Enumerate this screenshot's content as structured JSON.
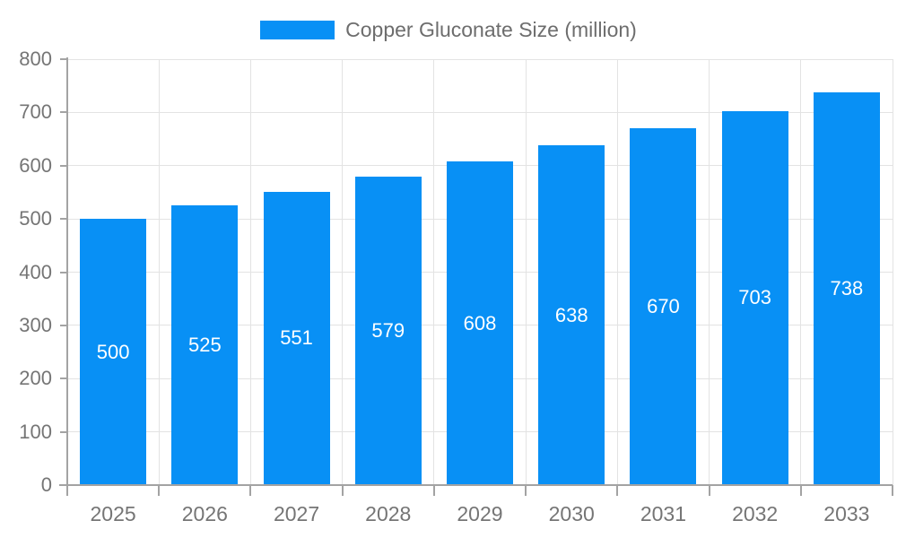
{
  "legend": {
    "label": "Copper Gluconate Size (million)"
  },
  "chart_data": {
    "type": "bar",
    "title": "Copper Gluconate Size (million)",
    "series": [
      {
        "name": "Copper Gluconate Size (million)",
        "values": [
          500,
          525,
          551,
          579,
          608,
          638,
          670,
          703,
          738
        ]
      }
    ],
    "categories": [
      "2025",
      "2026",
      "2027",
      "2028",
      "2029",
      "2030",
      "2031",
      "2032",
      "2033"
    ],
    "values": [
      500,
      525,
      551,
      579,
      608,
      638,
      670,
      703,
      738
    ],
    "bar_value_labels": [
      "500",
      "525",
      "551",
      "579",
      "608",
      "638",
      "670",
      "703",
      "738"
    ],
    "xlabel": "",
    "ylabel": "",
    "ylim": [
      0,
      800
    ],
    "yticks": [
      0,
      100,
      200,
      300,
      400,
      500,
      600,
      700,
      800
    ],
    "grid": true,
    "legend_position": "top-center"
  },
  "colors": {
    "bar": "#0890F5",
    "bar_value_text": "#ffffff",
    "gridline": "#e3e3e3",
    "axis_line": "#a3a3a3",
    "tick_text": "#757575",
    "legend_text": "#6d6d6d",
    "background": "#ffffff"
  }
}
